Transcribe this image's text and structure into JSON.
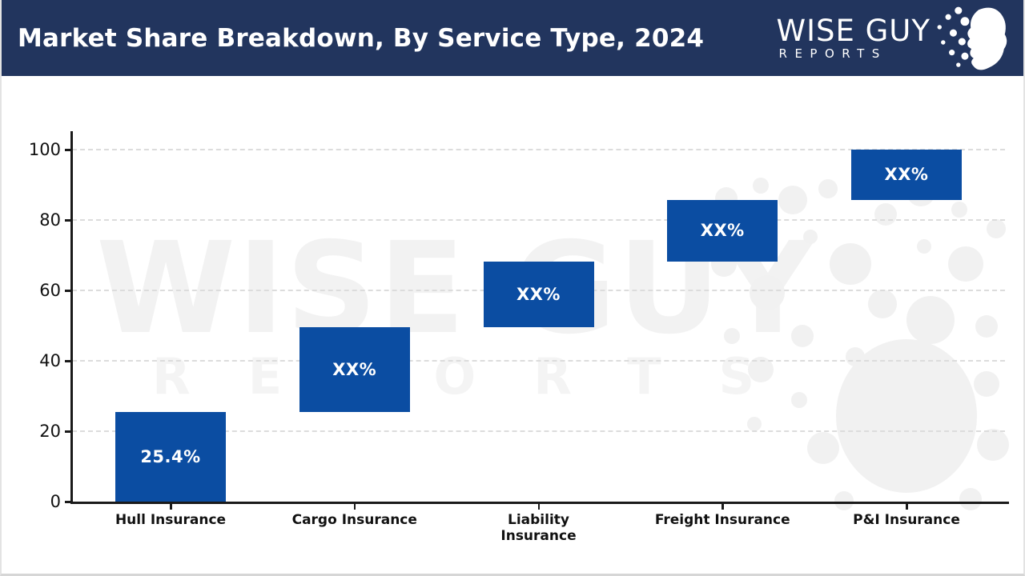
{
  "header": {
    "title": "Market Share Breakdown, By Service Type, 2024",
    "logo": {
      "line1": "WISE GUY",
      "line2": "REPORTS"
    }
  },
  "watermark": {
    "line1": "WISE GUY",
    "line2": "REPORTS"
  },
  "chart_data": {
    "type": "bar",
    "subtype": "waterfall",
    "title": "Market Share Breakdown, By Service Type, 2024",
    "xlabel": "",
    "ylabel": "",
    "ylim": [
      0,
      100
    ],
    "yticks": [
      0,
      20,
      40,
      60,
      80,
      100
    ],
    "grid": "horizontal-dashed",
    "legend": "none",
    "bar_color": "#0b4da2",
    "bar_label_color": "#ffffff",
    "categories": [
      "Hull Insurance",
      "Cargo Insurance",
      "Liability Insurance",
      "Freight Insurance",
      "P&I Insurance"
    ],
    "segments": [
      {
        "category": "Hull Insurance",
        "axis_lines": [
          "Hull Insurance"
        ],
        "start": 0,
        "end": 25.4,
        "value": 25.4,
        "label": "25.4%"
      },
      {
        "category": "Cargo Insurance",
        "axis_lines": [
          "Cargo Insurance"
        ],
        "start": 25.4,
        "end": 49.5,
        "value": 24.1,
        "label": "XX%"
      },
      {
        "category": "Liability Insurance",
        "axis_lines": [
          "Liability",
          "Insurance"
        ],
        "start": 49.5,
        "end": 68.2,
        "value": 18.7,
        "label": "XX%"
      },
      {
        "category": "Freight Insurance",
        "axis_lines": [
          "Freight Insurance"
        ],
        "start": 68.2,
        "end": 85.7,
        "value": 17.5,
        "label": "XX%"
      },
      {
        "category": "P&I Insurance",
        "axis_lines": [
          "P&I Insurance"
        ],
        "start": 85.7,
        "end": 100,
        "value": 14.3,
        "label": "XX%"
      }
    ]
  }
}
